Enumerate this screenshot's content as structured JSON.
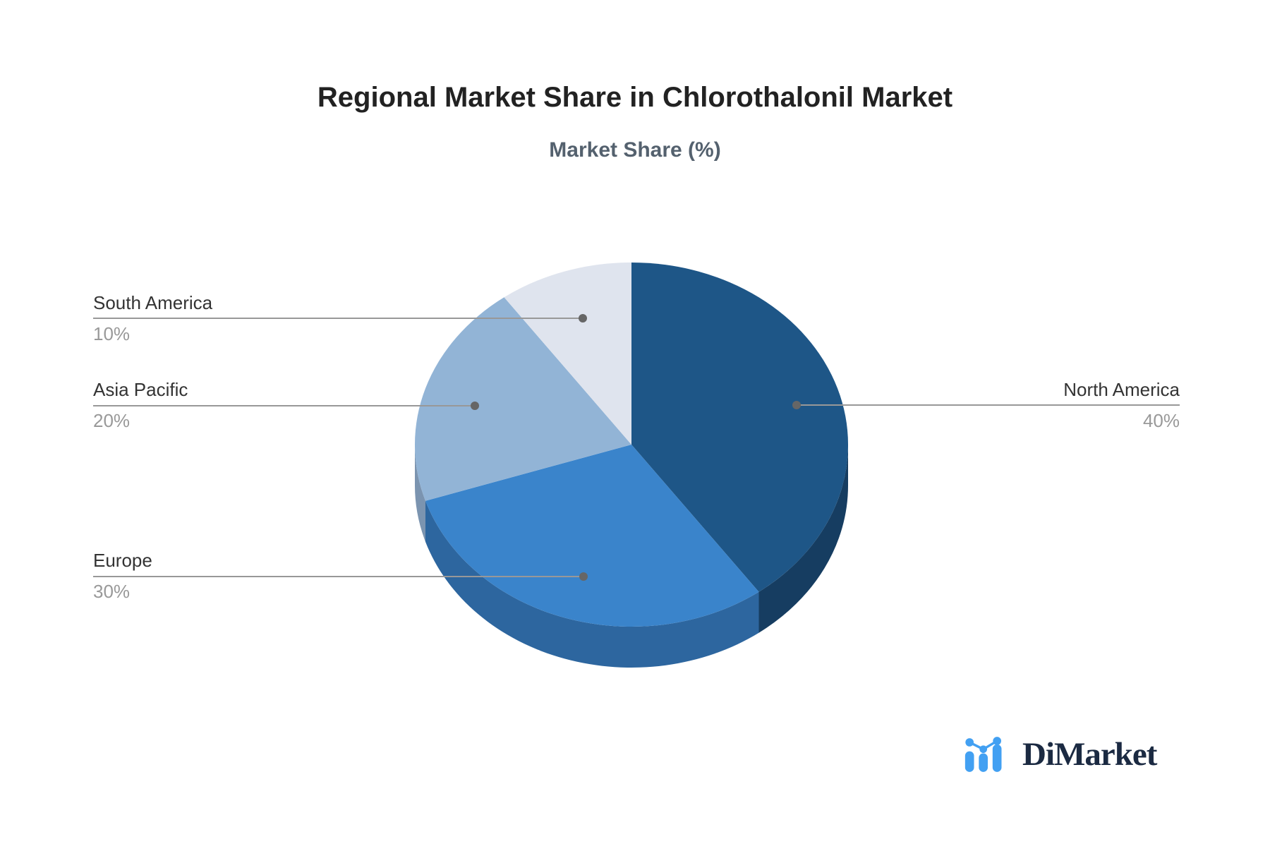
{
  "title": "Regional Market Share in Chlorothalonil Market",
  "subtitle": "Market Share (%)",
  "watermark": {
    "brand": "DiMarket"
  },
  "colors": {
    "title_text": "#222222",
    "subtitle_text": "#54616e",
    "label_text": "#333333",
    "value_text": "#999999",
    "connector_line": "#989898",
    "connector_dot": "#666666",
    "logo_blue": "#42a0f2",
    "logo_navy": "#1b2a42"
  },
  "chart_data": {
    "type": "pie",
    "style": "3d",
    "title": "Regional Market Share in Chlorothalonil Market",
    "subtitle": "Market Share (%)",
    "unit": "%",
    "start_angle_deg": 0,
    "direction": "clockwise",
    "legend": "none",
    "slices": [
      {
        "name": "North America",
        "value": 40,
        "display_value": "40%",
        "color": "#1e5687",
        "side_color": "#163d61",
        "label_side": "right"
      },
      {
        "name": "Europe",
        "value": 30,
        "display_value": "30%",
        "color": "#3a84cb",
        "side_color": "#2d669f",
        "label_side": "left"
      },
      {
        "name": "Asia Pacific",
        "value": 20,
        "display_value": "20%",
        "color": "#92b4d6",
        "side_color": "#7b94b0",
        "label_side": "left"
      },
      {
        "name": "South America",
        "value": 10,
        "display_value": "10%",
        "color": "#dfe4ee",
        "side_color": "#b9c2d0",
        "label_side": "left"
      }
    ]
  }
}
